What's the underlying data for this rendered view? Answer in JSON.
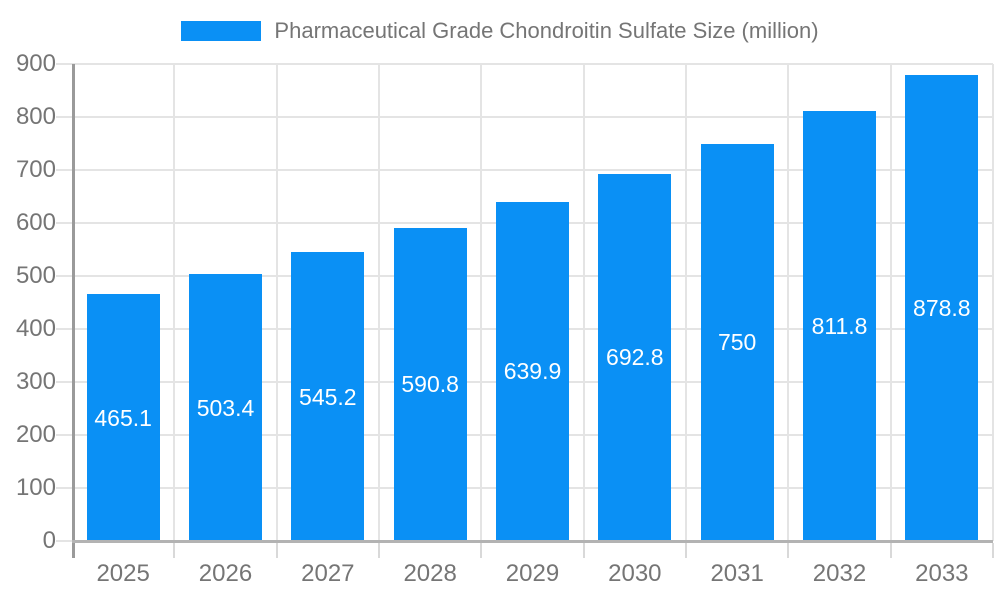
{
  "legend": {
    "label": "Pharmaceutical Grade Chondroitin Sulfate Size (million)"
  },
  "chart_data": {
    "type": "bar",
    "title": "Pharmaceutical Grade Chondroitin Sulfate Size (million)",
    "legend_entries": [
      "Pharmaceutical Grade Chondroitin Sulfate Size (million)"
    ],
    "legend_position": "top-center",
    "categories": [
      "2025",
      "2026",
      "2027",
      "2028",
      "2029",
      "2030",
      "2031",
      "2032",
      "2033"
    ],
    "values": [
      465.1,
      503.4,
      545.2,
      590.8,
      639.9,
      692.8,
      750,
      811.8,
      878.8
    ],
    "value_labels": [
      "465.1",
      "503.4",
      "545.2",
      "590.8",
      "639.9",
      "692.8",
      "750",
      "811.8",
      "878.8"
    ],
    "xlabel": "",
    "ylabel": "",
    "ylim": [
      0,
      900
    ],
    "yticks": [
      0,
      100,
      200,
      300,
      400,
      500,
      600,
      700,
      800,
      900
    ],
    "grid": true,
    "colors": {
      "bar": "#0A90F5",
      "value_label": "#ffffff",
      "axis_text": "#757575",
      "legend_text": "#757575",
      "gridline": "#e4e4e4",
      "x_tick": "#d9d9d9",
      "y_axis_line": "#9a9a9a",
      "x_axis_line": "#b3b3b3",
      "background": "#ffffff"
    }
  }
}
